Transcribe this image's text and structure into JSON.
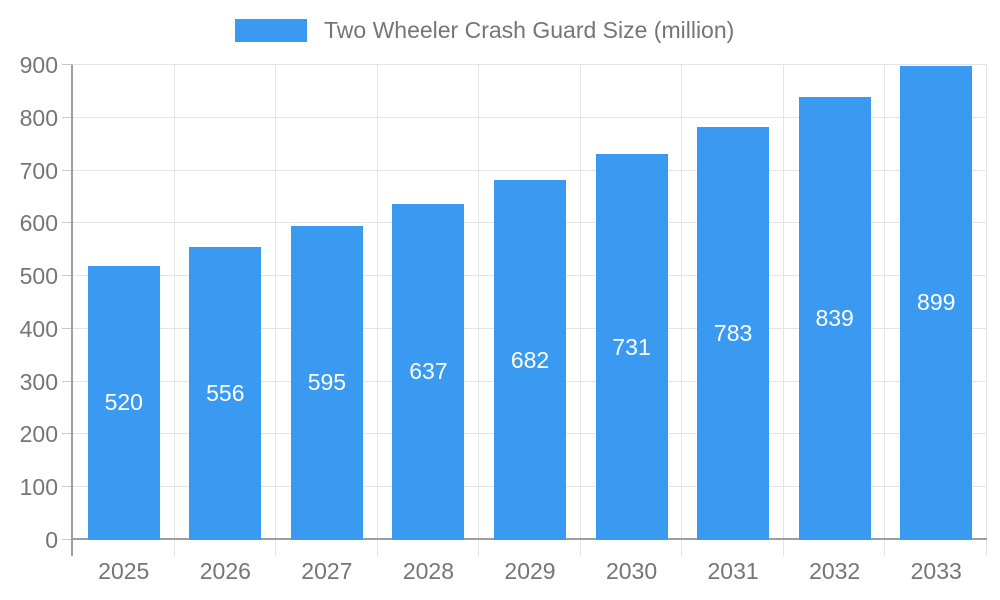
{
  "legend": {
    "label": "Two Wheeler Crash Guard Size (million)"
  },
  "chart_data": {
    "type": "bar",
    "title": "Two Wheeler Crash Guard Size (million)",
    "series": [
      {
        "name": "Two Wheeler Crash Guard Size (million)",
        "values": [
          520,
          556,
          595,
          637,
          682,
          731,
          783,
          839,
          899
        ]
      }
    ],
    "categories": [
      "2025",
      "2026",
      "2027",
      "2028",
      "2029",
      "2030",
      "2031",
      "2032",
      "2033"
    ],
    "values": [
      520,
      556,
      595,
      637,
      682,
      731,
      783,
      839,
      899
    ],
    "bar_value_labels": [
      "520",
      "556",
      "595",
      "637",
      "682",
      "731",
      "783",
      "839",
      "899"
    ],
    "xlabel": "",
    "ylabel": "",
    "ylim": [
      0,
      900
    ],
    "yticks": [
      0,
      100,
      200,
      300,
      400,
      500,
      600,
      700,
      800,
      900
    ],
    "grid": true,
    "legend_position": "top",
    "colors": {
      "bar": "#3a99f0",
      "bar_label": "#ffffff",
      "axis_text": "#757575",
      "grid_line": "#e4e4e4",
      "tick": "#c6c6c6",
      "axis_line": "#9e9e9e",
      "background": "#ffffff"
    }
  }
}
